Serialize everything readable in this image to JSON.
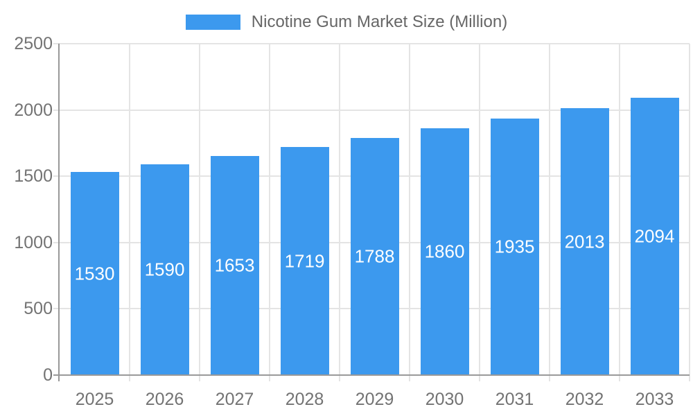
{
  "legend": {
    "label": "Nicotine Gum Market Size (Million)"
  },
  "colors": {
    "bar": "#3c99ee",
    "grid": "#e4e4e4",
    "axis": "#999999",
    "tick_label": "#737373",
    "legend_text": "#666666",
    "value_label": "#ffffff",
    "background": "#ffffff"
  },
  "chart_data": {
    "type": "bar",
    "title": "Nicotine Gum Market Size (Million)",
    "categories": [
      "2025",
      "2026",
      "2027",
      "2028",
      "2029",
      "2030",
      "2031",
      "2032",
      "2033"
    ],
    "series": [
      {
        "name": "Nicotine Gum Market Size (Million)",
        "values": [
          1530,
          1590,
          1653,
          1719,
          1788,
          1860,
          1935,
          2013,
          2094
        ]
      }
    ],
    "value_labels_shown": [
      1530,
      1590,
      1653,
      1719,
      1788,
      1860,
      1935,
      2013,
      2094
    ],
    "xlabel": "",
    "ylabel": "",
    "ylim": [
      0,
      2500
    ],
    "yticks": [
      0,
      500,
      1000,
      1500,
      2000,
      2500
    ],
    "grid": true,
    "legend_position": "top",
    "value_label_position": "inside-center"
  }
}
